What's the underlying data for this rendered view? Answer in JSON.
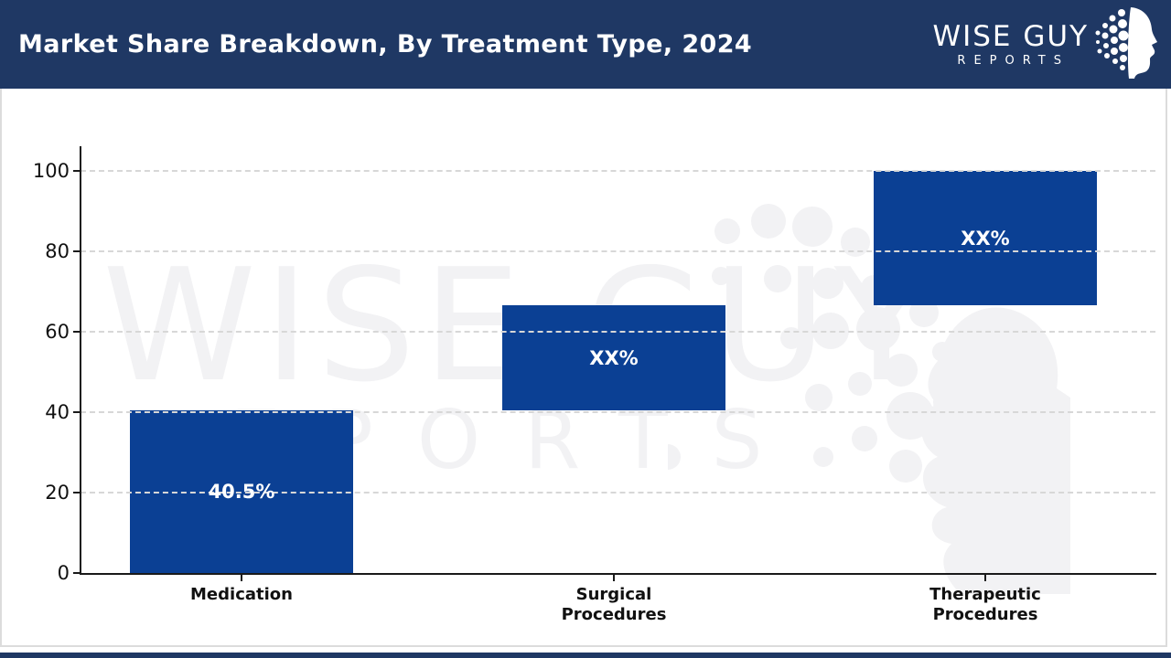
{
  "header": {
    "title": "Market Share Breakdown, By Treatment Type, 2024",
    "logo": {
      "line1": "WISE GUY",
      "line2": "REPORTS"
    }
  },
  "watermark": {
    "line1": "WISE GUY",
    "line2": "REPORTS"
  },
  "colors": {
    "header_bg": "#1F3864",
    "bar": "#0B4094",
    "bar_label_text": "#ffffff",
    "gridline": "#d7d7d7",
    "axis": "#1a1a1a",
    "watermark": "#f2f2f4"
  },
  "chart_data": {
    "type": "bar",
    "subtype": "waterfall",
    "title": "Market Share Breakdown, By Treatment Type, 2024",
    "categories": [
      "Medication",
      "Surgical Procedures",
      "Therapeutic Procedures"
    ],
    "segments": [
      {
        "category": "Medication",
        "start": 0,
        "end": 40.5,
        "label": "40.5%"
      },
      {
        "category": "Surgical Procedures",
        "start": 40.5,
        "end": 66.5,
        "label": "XX%"
      },
      {
        "category": "Therapeutic Procedures",
        "start": 66.5,
        "end": 100,
        "label": "XX%"
      }
    ],
    "ylim": [
      0,
      105
    ],
    "yticks": [
      0,
      20,
      40,
      60,
      80,
      100
    ],
    "grid": "dashed-horizontal",
    "legend": "none",
    "xlabel": "",
    "ylabel": ""
  }
}
